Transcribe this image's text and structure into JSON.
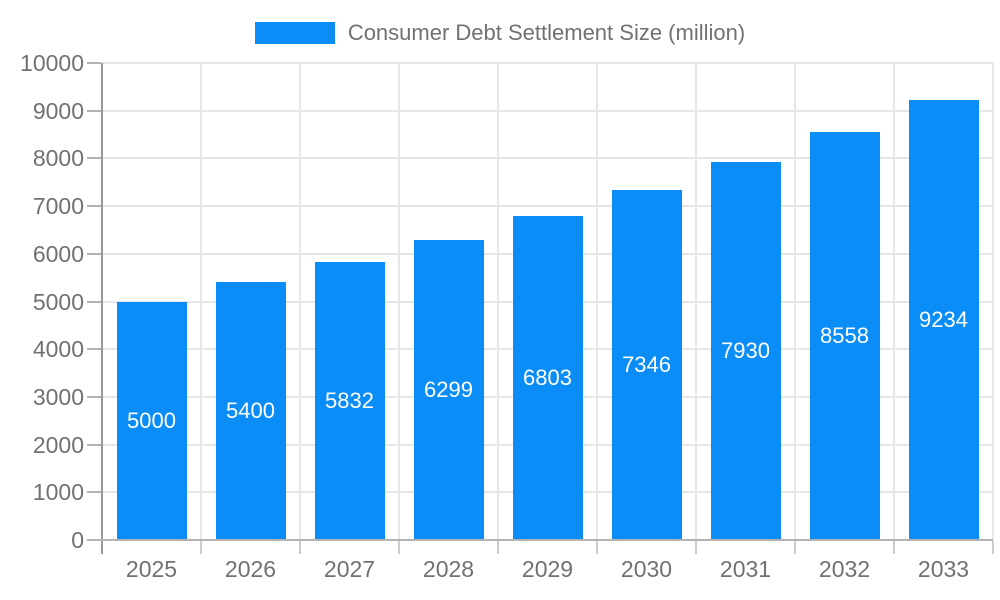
{
  "legend": {
    "label": "Consumer Debt Settlement Size (million)"
  },
  "chart_data": {
    "type": "bar",
    "title": "Consumer Debt Settlement Size (million)",
    "categories": [
      "2025",
      "2026",
      "2027",
      "2028",
      "2029",
      "2030",
      "2031",
      "2032",
      "2033"
    ],
    "series": [
      {
        "name": "Consumer Debt Settlement Size (million)",
        "values": [
          5000,
          5400,
          5832,
          6299,
          6803,
          7346,
          7930,
          8558,
          9234
        ]
      }
    ],
    "values": [
      5000,
      5400,
      5832,
      6299,
      6803,
      7346,
      7930,
      8558,
      9234
    ],
    "value_labels": [
      "5000",
      "5400",
      "5832",
      "6299",
      "6803",
      "7346",
      "7930",
      "8558",
      "9234"
    ],
    "xlabel": "",
    "ylabel": "",
    "ylim": [
      0,
      10000
    ],
    "y_ticks": [
      0,
      1000,
      2000,
      3000,
      4000,
      5000,
      6000,
      7000,
      8000,
      9000,
      10000
    ],
    "grid": true,
    "legend_position": "top-center",
    "value_label_position": "inside-center"
  },
  "colors": {
    "bar": "#0a8df7",
    "grid": "#e6e6e6",
    "y_axis_line": "#999999",
    "x_baseline": "#b3b3b3",
    "y_tick": "#b3b3b3",
    "x_tick": "#cccccc",
    "axis_text": "#717171",
    "value_text": "#ffffff",
    "background": "#ffffff"
  }
}
